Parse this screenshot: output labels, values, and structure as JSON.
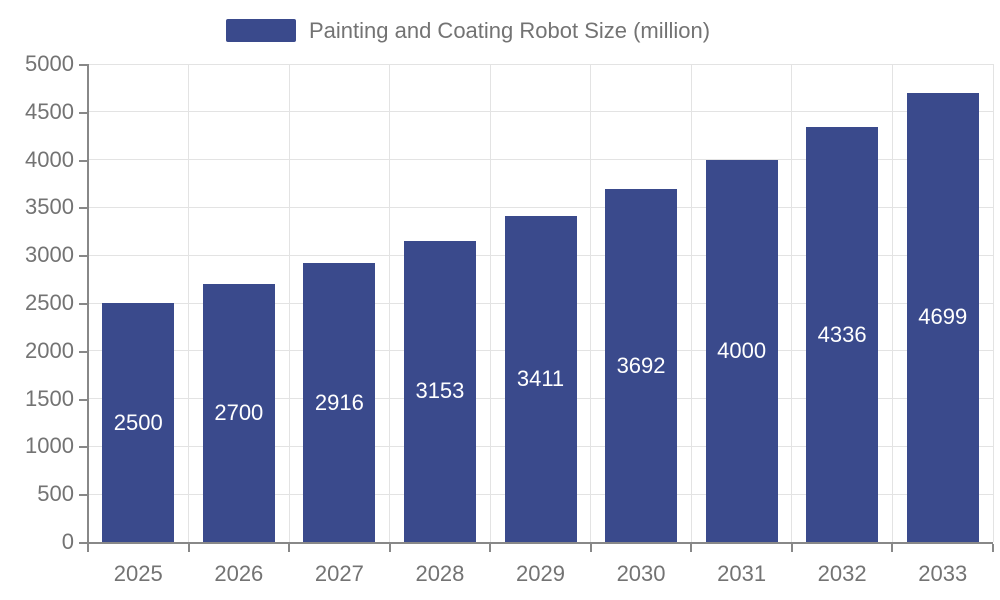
{
  "legend": {
    "label": "Painting and Coating Robot Size (million)"
  },
  "colors": {
    "bar": "#3A4A8C",
    "axis_line": "#888888",
    "gridline": "#E3E3E3",
    "tick_label": "#737373",
    "legend_text": "#737373",
    "value_label": "#FFFFFF",
    "background": "#FFFFFF"
  },
  "chart_data": {
    "type": "bar",
    "title": "Painting and Coating Robot Size (million)",
    "series_name": "Painting and Coating Robot Size (million)",
    "categories": [
      "2025",
      "2026",
      "2027",
      "2028",
      "2029",
      "2030",
      "2031",
      "2032",
      "2033"
    ],
    "values": [
      2500,
      2700,
      2916,
      3153,
      3411,
      3692,
      4000,
      4336,
      4699
    ],
    "xlabel": "",
    "ylabel": "",
    "ylim": [
      0,
      5000
    ],
    "ytick_step": 500,
    "yticks": [
      0,
      500,
      1000,
      1500,
      2000,
      2500,
      3000,
      3500,
      4000,
      4500,
      5000
    ],
    "grid": true,
    "legend_position": "top-center",
    "value_labels": "inside-center"
  }
}
